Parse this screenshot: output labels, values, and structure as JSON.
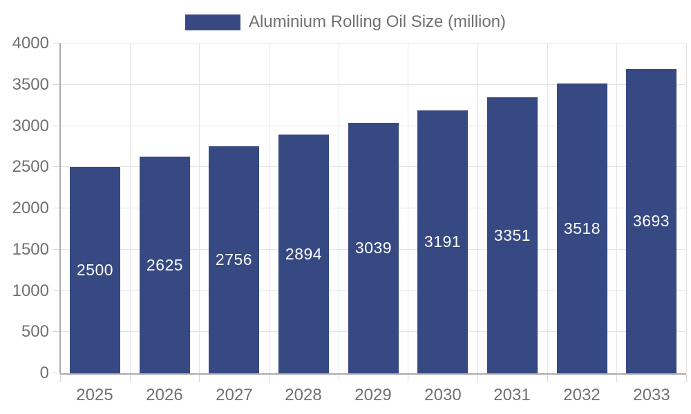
{
  "chart_data": {
    "type": "bar",
    "title": "",
    "legend": {
      "label": "Aluminium Rolling Oil Size (million)"
    },
    "categories": [
      "2025",
      "2026",
      "2027",
      "2028",
      "2029",
      "2030",
      "2031",
      "2032",
      "2033"
    ],
    "values": [
      2500,
      2625,
      2756,
      2894,
      3039,
      3191,
      3351,
      3518,
      3693
    ],
    "xlabel": "",
    "ylabel": "",
    "ylim": [
      0,
      4000
    ],
    "ytick_interval": 500,
    "ytick_labels": [
      "0",
      "500",
      "1000",
      "1500",
      "2000",
      "2500",
      "3000",
      "3500",
      "4000"
    ],
    "grid": true,
    "legend_position": "top-center",
    "colors": {
      "bar": "#364983",
      "bar_label": "#ffffff",
      "axis_text": "#707070",
      "grid_line": "#e3e3e3",
      "tick_line": "#d6d6d6",
      "axis_line": "#ababab",
      "background": "#ffffff"
    }
  }
}
